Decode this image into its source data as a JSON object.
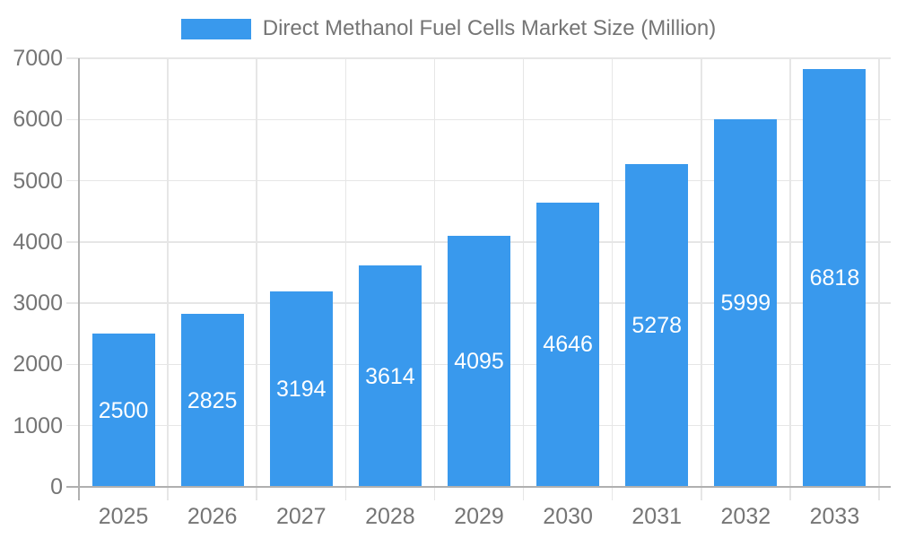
{
  "chart_data": {
    "type": "bar",
    "title": "Direct Methanol Fuel Cells Market Size (Million)",
    "legend": {
      "label": "Direct Methanol Fuel Cells Market Size (Million)",
      "position": "top"
    },
    "categories": [
      "2025",
      "2026",
      "2027",
      "2028",
      "2029",
      "2030",
      "2031",
      "2032",
      "2033"
    ],
    "values": [
      2500,
      2825,
      3194,
      3614,
      4095,
      4646,
      5278,
      5999,
      6818
    ],
    "xlabel": "",
    "ylabel": "",
    "ylim": [
      0,
      7000
    ],
    "ytick_interval": 1000,
    "yticks": [
      0,
      1000,
      2000,
      3000,
      4000,
      5000,
      6000,
      7000
    ],
    "grid": true,
    "bar_value_labels_visible": true,
    "colors": {
      "bar": "#3999ED",
      "bar_label": "#FFFFFF",
      "axis_text": "#757575",
      "legend_text": "#757575",
      "gridline": "#E6E6E6",
      "axis_line": "#B0B0B0",
      "background": "#FFFFFF"
    }
  }
}
